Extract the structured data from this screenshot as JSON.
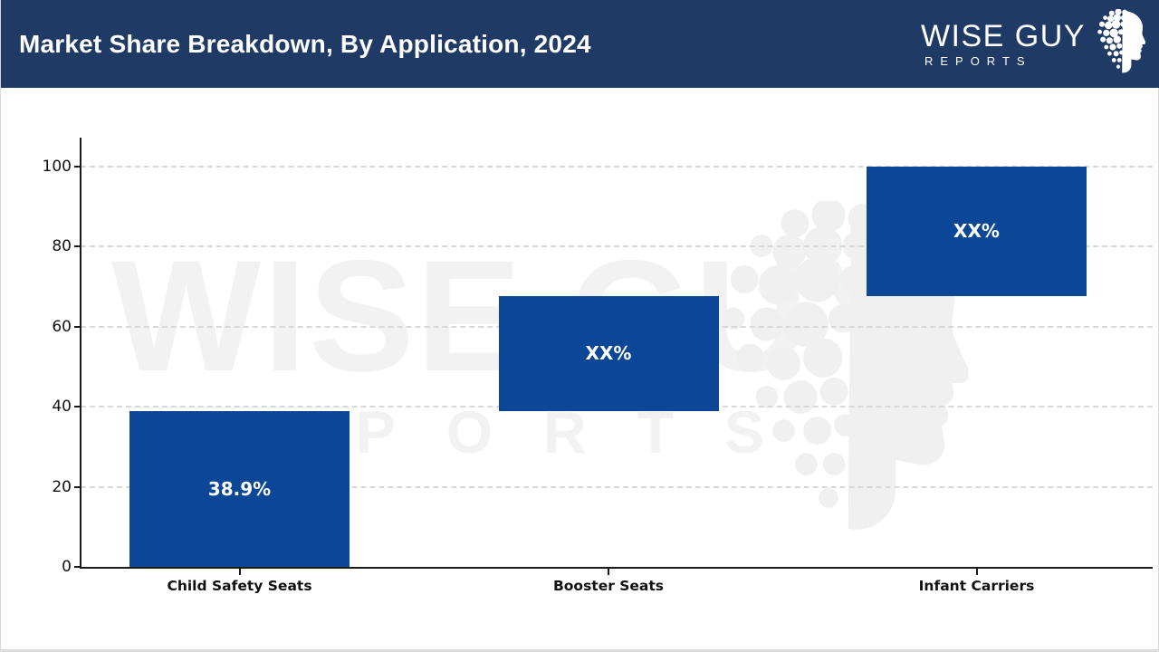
{
  "header": {
    "title": "Market Share Breakdown, By Application, 2024",
    "bg_color": "#203a66",
    "logo": {
      "line1": "WISE GUY",
      "line2": "REPORTS",
      "head_icon": "dotted-head-profile-icon",
      "color": "#ffffff"
    }
  },
  "watermark": {
    "line1": "WISE GUY",
    "line2": "REPORTS",
    "head_icon": "dotted-head-profile-icon",
    "text_color": "#f2f2f2",
    "head_color": "#f0f0f0"
  },
  "chart_data": {
    "type": "bar",
    "variant": "stepped-waterfall",
    "title": "Market Share Breakdown, By Application, 2024",
    "categories": [
      "Child Safety Seats",
      "Booster Seats",
      "Infant Carriers"
    ],
    "segments": [
      {
        "category": "Child Safety Seats",
        "start": 0,
        "end": 38.9,
        "label": "38.9%"
      },
      {
        "category": "Booster Seats",
        "start": 38.9,
        "end": 67.7,
        "label": "XX%"
      },
      {
        "category": "Infant Carriers",
        "start": 67.7,
        "end": 100,
        "label": "XX%"
      }
    ],
    "yticks": [
      0,
      20,
      40,
      60,
      80,
      100
    ],
    "ylim": [
      0,
      107
    ],
    "xlabel": "",
    "ylabel": "",
    "legend": "none",
    "grid": "horizontal-dashed",
    "grid_color": "#d8d8d8",
    "axis_color": "#1a1a1a",
    "bar_color": "#0b4697",
    "bar_label_color": "#ffffff"
  }
}
